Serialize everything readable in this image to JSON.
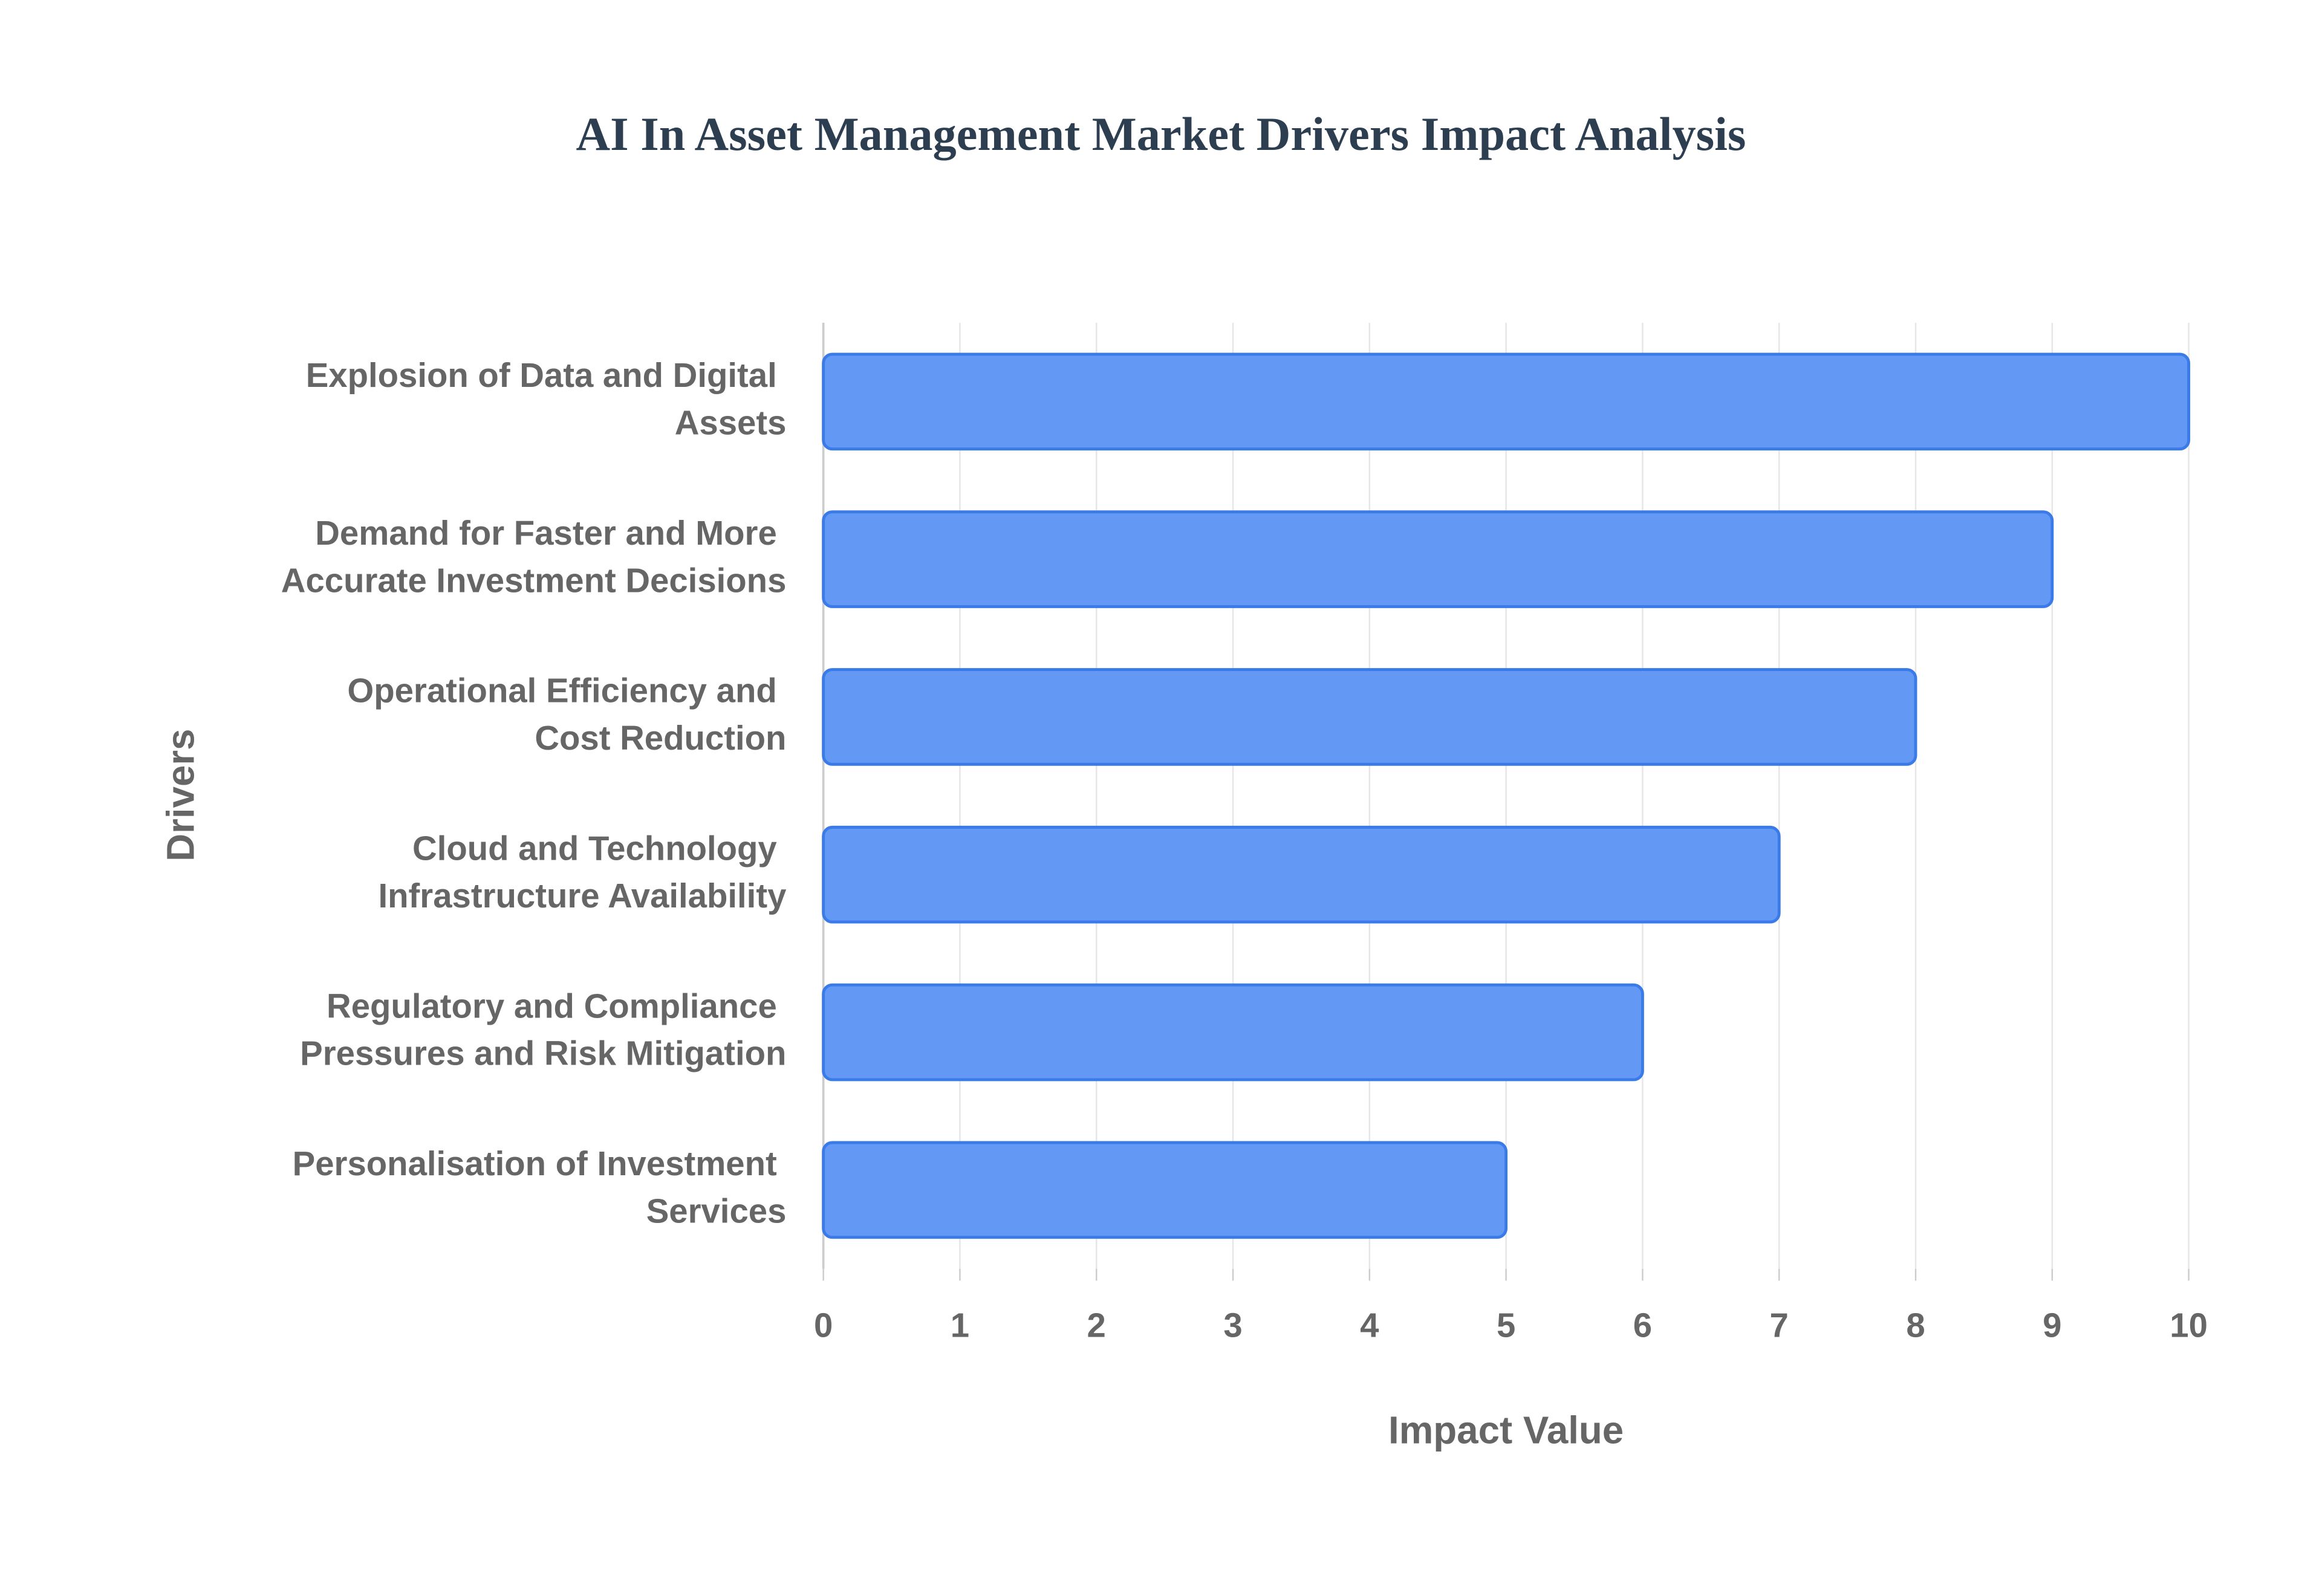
{
  "chart_data": {
    "type": "bar",
    "orientation": "horizontal",
    "title": "AI In Asset Management Market Drivers Impact Analysis",
    "x_label": "Impact Value",
    "y_label": "Drivers",
    "categories": [
      "Explosion of Data and Digital Assets",
      "Demand for Faster and More Accurate Investment Decisions",
      "Operational Efficiency and Cost Reduction",
      "Cloud and Technology Infrastructure Availability",
      "Regulatory and Compliance Pressures and Risk Mitigation",
      "Personalisation of Investment Services"
    ],
    "values": [
      10,
      9,
      8,
      7,
      6,
      5
    ],
    "color": "#6399f5",
    "xlim": [
      0,
      10
    ],
    "xticks": [
      0,
      1,
      2,
      3,
      4,
      5,
      6,
      7,
      8,
      9,
      10
    ],
    "grid": true
  }
}
